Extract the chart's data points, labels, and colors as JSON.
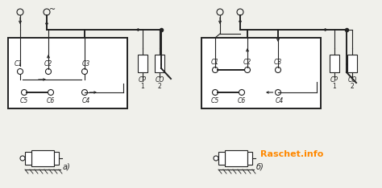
{
  "background_color": "#f0f0eb",
  "watermark_text": "Raschet.info",
  "watermark_color": "#FF8800",
  "watermark_fontsize": 8,
  "fig_width": 4.74,
  "fig_height": 2.34,
  "dpi": 100,
  "label_a": "a)",
  "label_b": "б)",
  "line_color": "#222222",
  "box_facecolor": "#ffffff"
}
